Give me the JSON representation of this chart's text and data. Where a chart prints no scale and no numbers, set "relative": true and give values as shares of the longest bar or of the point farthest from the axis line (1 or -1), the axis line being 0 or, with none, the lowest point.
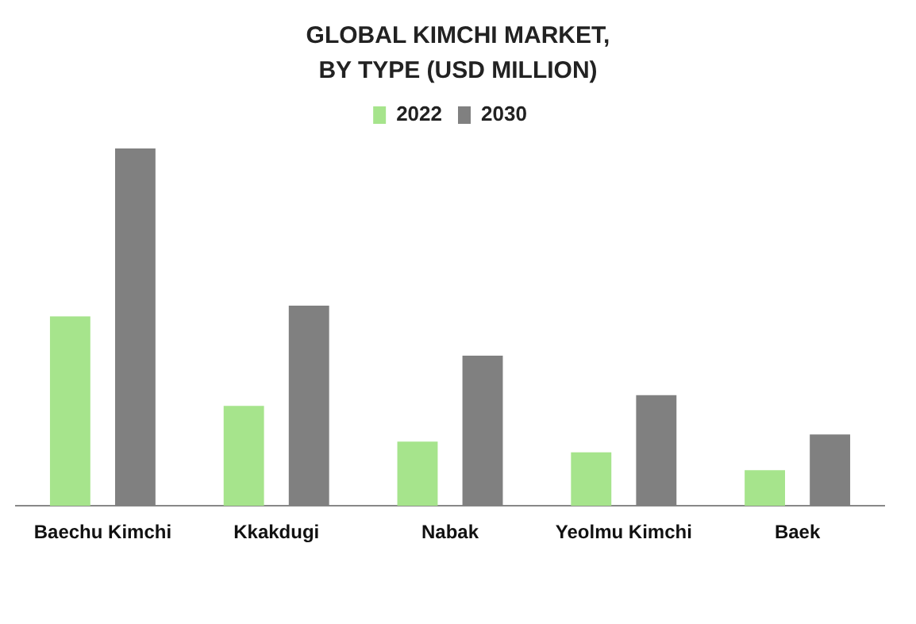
{
  "chart_data": {
    "type": "bar",
    "title": "GLOBAL KIMCHI MARKET, BY TYPE (USD MILLION)",
    "relative": true,
    "legend": "top",
    "grid": false,
    "categories": [
      "Baechu Kimchi",
      "Kkakdugi",
      "Nabak",
      "Yeolmu Kimchi",
      "Baek"
    ],
    "series": [
      {
        "name": "2022",
        "color": "#a6e48c",
        "values": [
          0.53,
          0.28,
          0.18,
          0.15,
          0.1
        ]
      },
      {
        "name": "2030",
        "color": "#808080",
        "values": [
          1,
          0.56,
          0.42,
          0.31,
          0.2
        ]
      }
    ]
  }
}
